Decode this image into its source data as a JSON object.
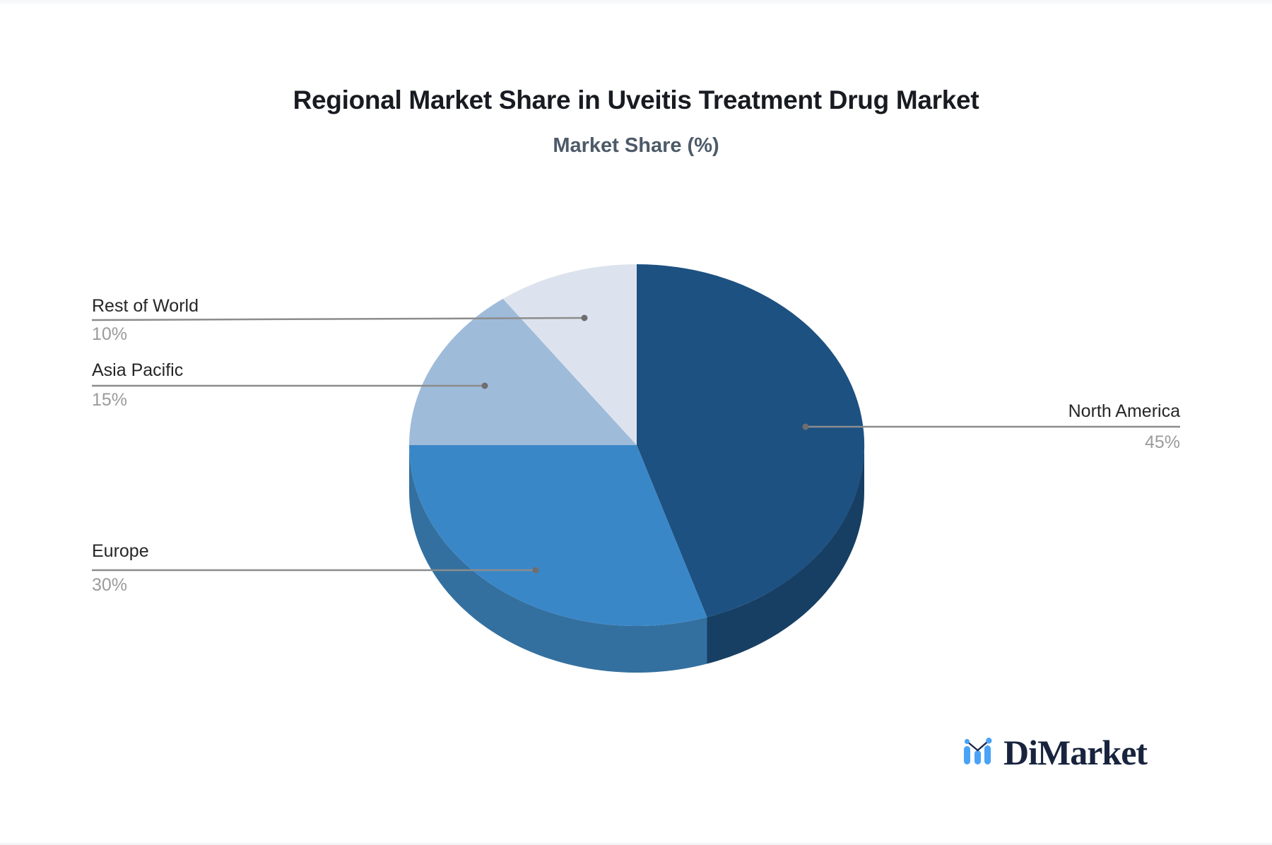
{
  "page": {
    "background": "#ffffff",
    "edge_strip_color": "#f7f8f9"
  },
  "header": {
    "title": "Regional Market Share in Uveitis Treatment Drug Market",
    "subtitle": "Market Share (%)"
  },
  "chart_data": {
    "type": "pie",
    "style": "3d-pie",
    "title": "Regional Market Share in Uveitis Treatment Drug Market",
    "subtitle": "Market Share (%)",
    "unit": "percent",
    "start_angle_deg": 90,
    "direction": "clockwise",
    "legend_position": "callout-labels",
    "slices": [
      {
        "label": "North America",
        "value": 45,
        "pct_label": "45%",
        "color": "#1d5181",
        "side_color": "#173f63",
        "label_side": "right"
      },
      {
        "label": "Europe",
        "value": 30,
        "pct_label": "30%",
        "color": "#3a87c8",
        "side_color": "#33709f",
        "label_side": "left"
      },
      {
        "label": "Asia Pacific",
        "value": 15,
        "pct_label": "15%",
        "color": "#9fbbda",
        "side_color": "#7d9cc0",
        "label_side": "left"
      },
      {
        "label": "Rest of World",
        "value": 10,
        "pct_label": "10%",
        "color": "#dde3ee",
        "side_color": "#b9c4d6",
        "label_side": "left"
      }
    ],
    "label_color": "#262626",
    "pct_color": "#9b9b9b",
    "leader_line_color": "#8c8c8c",
    "leader_dot_color": "#6e6e6e"
  },
  "branding": {
    "logo_text": "DiMarket",
    "logo_text_color": "#18243e",
    "logo_bar_color": "#4aa3f7",
    "logo_line_color": "#1b2a4a"
  }
}
